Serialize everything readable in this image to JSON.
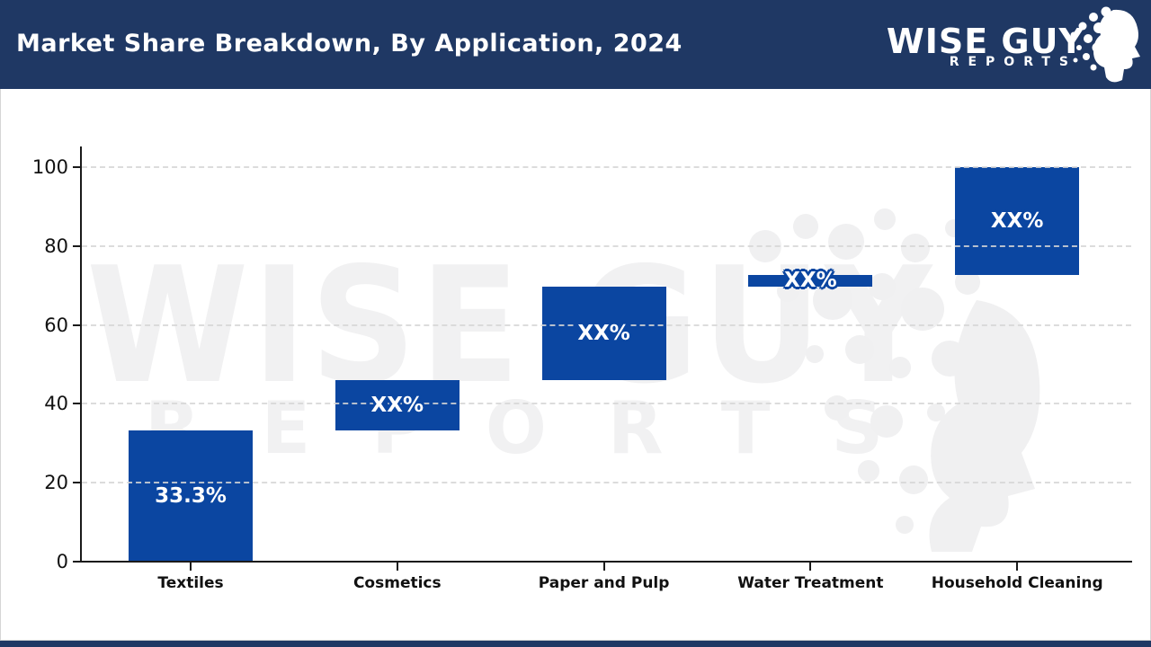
{
  "header": {
    "title": "Market Share Breakdown, By Application, 2024"
  },
  "logo": {
    "line1": "WISE GUY",
    "line2": "REPORTS"
  },
  "watermark": {
    "line1": "WISE GUY",
    "line2": "REPORTS"
  },
  "colors": {
    "header_bg": "#1F3864",
    "footer_bg": "#1F3864",
    "bar": "#0B46A1",
    "bar_label_text": "#FFFFFF",
    "grid": "#D6D6D6",
    "axis": "#1A1A1A",
    "watermark": "#F1F1F2"
  },
  "chart_data": {
    "type": "bar",
    "subtype": "waterfall",
    "title": "Market Share Breakdown, By Application, 2024",
    "categories": [
      "Textiles",
      "Cosmetics",
      "Paper and Pulp",
      "Water Treatment",
      "Household Cleaning"
    ],
    "segments": [
      {
        "category": "Textiles",
        "label": "33.3%",
        "start": 0,
        "end": 33.3
      },
      {
        "category": "Cosmetics",
        "label": "XX%",
        "start": 33.3,
        "end": 45.9
      },
      {
        "category": "Paper and Pulp",
        "label": "XX%",
        "start": 45.9,
        "end": 69.7
      },
      {
        "category": "Water Treatment",
        "label": "XX%",
        "start": 69.7,
        "end": 72.7
      },
      {
        "category": "Household Cleaning",
        "label": "XX%",
        "start": 72.7,
        "end": 100
      }
    ],
    "ylabel": "",
    "xlabel": "",
    "yticks": [
      0,
      20,
      40,
      60,
      80,
      100
    ],
    "ylim": [
      0,
      105
    ],
    "grid": "horizontal-dashed",
    "legend": "none"
  }
}
